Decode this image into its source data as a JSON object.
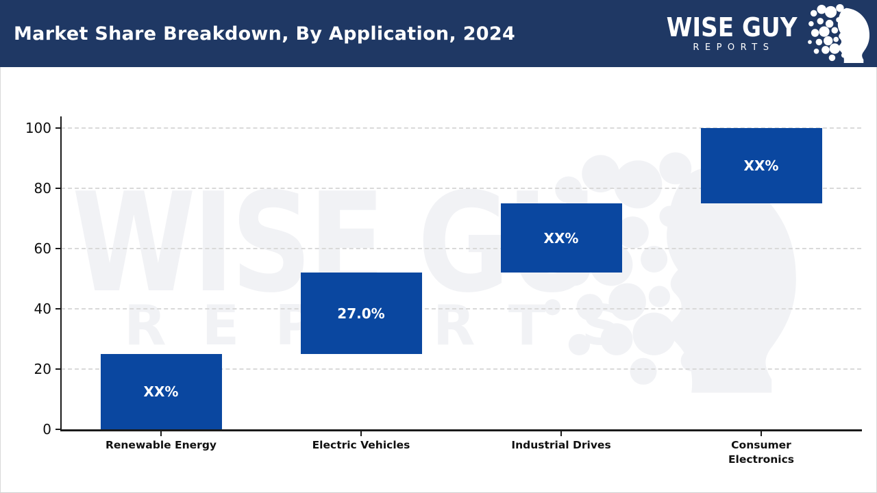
{
  "header": {
    "title": "Market Share Breakdown, By Application, 2024",
    "logo": {
      "line1": "WISE GUY",
      "line2": "REPORTS"
    }
  },
  "watermark": {
    "line1": "WISE GU",
    "line2": "REPORTS"
  },
  "colors": {
    "header_bg": "#1f3864",
    "bar": "#0a47a0",
    "axis": "#1a1a1a",
    "grid": "#d9d9d9",
    "bar_label_text": "#ffffff",
    "tick_text": "#0d0d0d",
    "watermark": "#f1f2f5"
  },
  "chart_data": {
    "type": "bar",
    "variant": "waterfall",
    "title": "Market Share Breakdown, By Application, 2024",
    "categories": [
      "Renewable Energy",
      "Electric Vehicles",
      "Industrial Drives",
      "Consumer Electronics"
    ],
    "segments": [
      {
        "category": "Renewable Energy",
        "start": 0,
        "end": 25,
        "label": "XX%"
      },
      {
        "category": "Electric Vehicles",
        "start": 25,
        "end": 52,
        "label": "27.0%"
      },
      {
        "category": "Industrial Drives",
        "start": 52,
        "end": 75,
        "label": "XX%"
      },
      {
        "category": "Consumer Electronics",
        "start": 75,
        "end": 100,
        "label": "XX%"
      }
    ],
    "ylim": [
      0,
      100
    ],
    "yticks": [
      0,
      20,
      40,
      60,
      80,
      100
    ],
    "grid": "horizontal-dashed",
    "legend": false
  }
}
